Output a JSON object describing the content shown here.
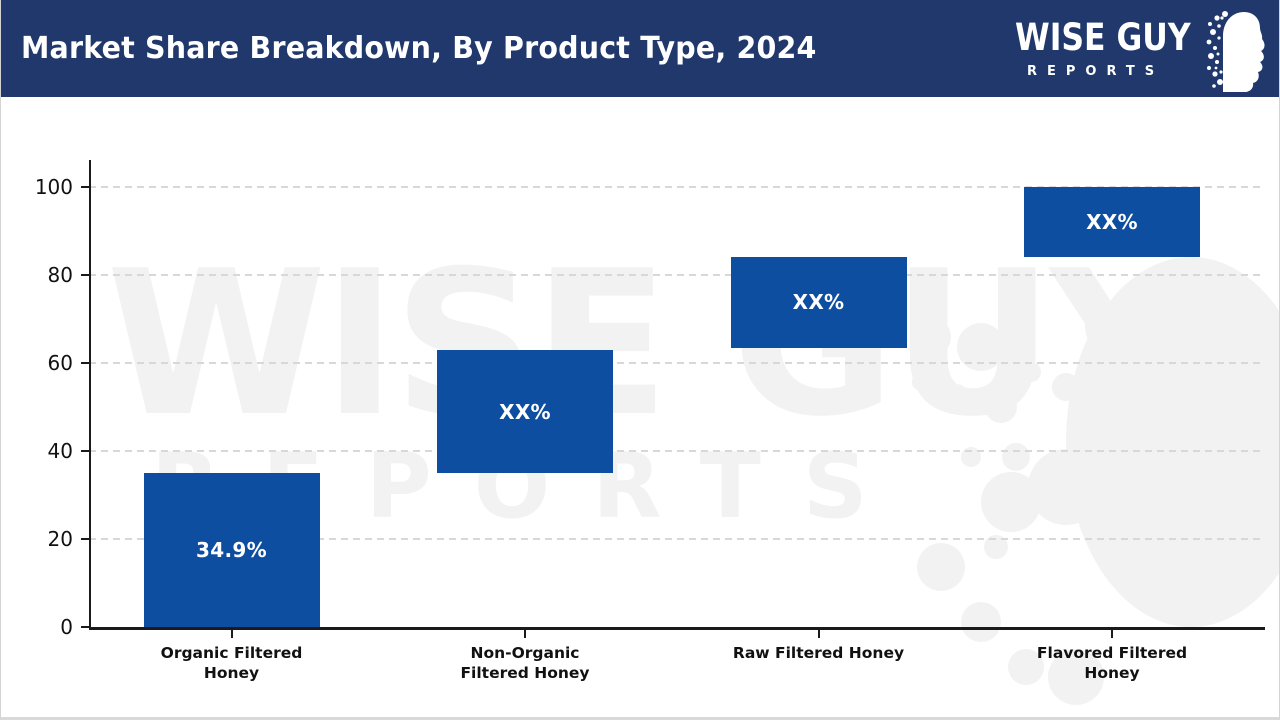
{
  "header": {
    "title": "Market Share Breakdown, By Product Type, 2024",
    "logo": {
      "line1": "WISE GUY",
      "line2": "REPORTS",
      "face_icon": "dotted-face-profile-icon"
    }
  },
  "watermark": {
    "line1": "WISE GUY",
    "line2": "REPORTS"
  },
  "chart_data": {
    "type": "bar",
    "subtype": "floating-segment-waterfall",
    "title": "Market Share Breakdown, By Product Type, 2024",
    "categories": [
      "Organic Filtered Honey",
      "Non-Organic Filtered Honey",
      "Raw Filtered Honey",
      "Flavored Filtered Honey"
    ],
    "bars": [
      {
        "category": "Organic Filtered Honey",
        "label_lines": [
          "Organic Filtered",
          "Honey"
        ],
        "from": 0,
        "to": 34.9,
        "value_label": "34.9%"
      },
      {
        "category": "Non-Organic Filtered Honey",
        "label_lines": [
          "Non-Organic",
          "Filtered Honey"
        ],
        "from": 34.9,
        "to": 63,
        "value_label": "XX%"
      },
      {
        "category": "Raw Filtered Honey",
        "label_lines": [
          "Raw Filtered Honey"
        ],
        "from": 63.5,
        "to": 84,
        "value_label": "XX%"
      },
      {
        "category": "Flavored Filtered Honey",
        "label_lines": [
          "Flavored Filtered",
          "Honey"
        ],
        "from": 84,
        "to": 100,
        "value_label": "XX%"
      }
    ],
    "ylim": [
      0,
      107
    ],
    "yticks": [
      0,
      20,
      40,
      60,
      80,
      100
    ],
    "grid": "horizontal-dashed",
    "legend": "none",
    "colors": {
      "bar": "#0d4ea0",
      "value_label": "#ffffff",
      "axis": "#1a1a1a",
      "gridline": "#d8d8d8",
      "header_bg": "#20386b",
      "watermark": "#f2f2f3"
    }
  }
}
